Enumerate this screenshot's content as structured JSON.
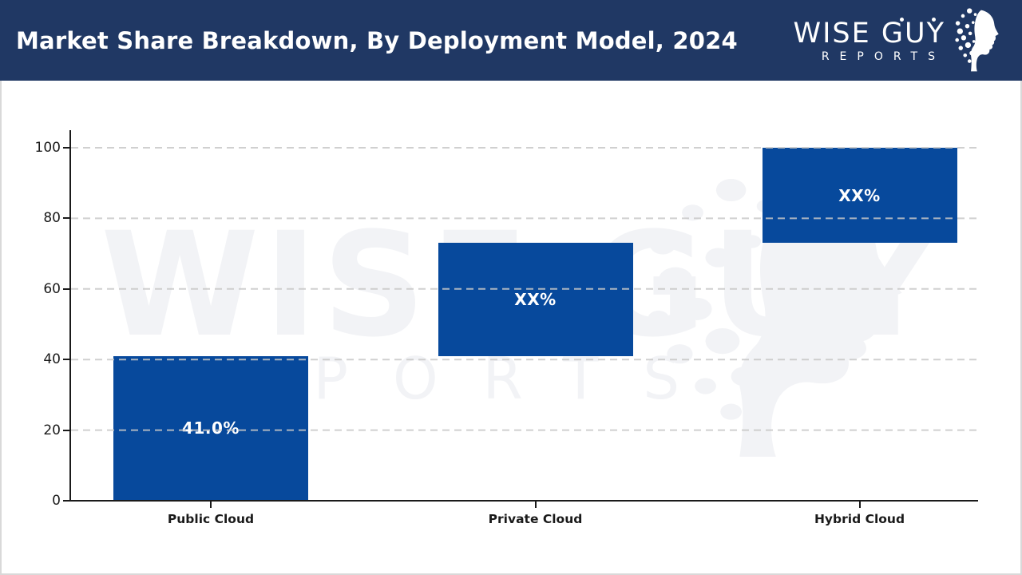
{
  "header": {
    "title": "Market Share Breakdown, By Deployment Model, 2024",
    "logo": {
      "line1": "WISE GUY",
      "line2": "REPORTS"
    }
  },
  "watermark": {
    "line1": "WISE GUY",
    "line2": "REPORTS"
  },
  "colors": {
    "header_bg": "#203864",
    "bar": "#07499c",
    "grid": "#c8c8c8",
    "axis": "#1a1a1a",
    "watermark": "#f2f3f6",
    "bar_label": "#ffffff"
  },
  "chart_data": {
    "type": "bar",
    "subtype": "floating-percentage-breakdown",
    "title": "Market Share Breakdown, By Deployment Model, 2024",
    "categories": [
      "Public Cloud",
      "Private Cloud",
      "Hybrid Cloud"
    ],
    "segments": [
      {
        "category": "Public Cloud",
        "start": 0,
        "end": 41,
        "label": "41.0%",
        "value_pct": 41.0
      },
      {
        "category": "Private Cloud",
        "start": 41,
        "end": 73,
        "label": "XX%",
        "value_pct_est": 32
      },
      {
        "category": "Hybrid Cloud",
        "start": 73,
        "end": 100,
        "label": "XX%",
        "value_pct_est": 27
      }
    ],
    "yticks": [
      0,
      20,
      40,
      60,
      80,
      100
    ],
    "ylim": [
      0,
      105
    ],
    "xlabel": "",
    "ylabel": "",
    "grid": "horizontal-dashed",
    "legend": "none"
  }
}
